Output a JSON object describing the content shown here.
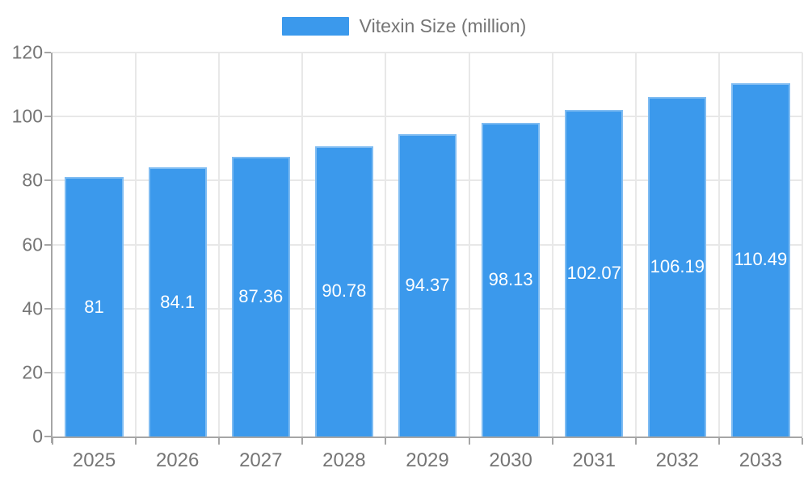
{
  "chart_data": {
    "type": "bar",
    "title": "",
    "legend": {
      "label": "Vitexin Size (million)",
      "position": "top"
    },
    "categories": [
      "2025",
      "2026",
      "2027",
      "2028",
      "2029",
      "2030",
      "2031",
      "2032",
      "2033"
    ],
    "series": [
      {
        "name": "Vitexin Size (million)",
        "values": [
          81,
          84.1,
          87.36,
          90.78,
          94.37,
          98.13,
          102.07,
          106.19,
          110.49
        ]
      }
    ],
    "value_labels": [
      "81",
      "84.1",
      "87.36",
      "90.78",
      "94.37",
      "98.13",
      "102.07",
      "106.19",
      "110.49"
    ],
    "ylim": [
      0,
      120
    ],
    "yticks": [
      0,
      20,
      40,
      60,
      80,
      100,
      120
    ],
    "grid": "horizontal-and-vertical",
    "colors": {
      "bar": "#3b99ec",
      "axis": "#a6a6a6",
      "grid": "#e8e8e8",
      "text": "#757575",
      "value_label": "#ffffff",
      "background": "#ffffff"
    }
  }
}
